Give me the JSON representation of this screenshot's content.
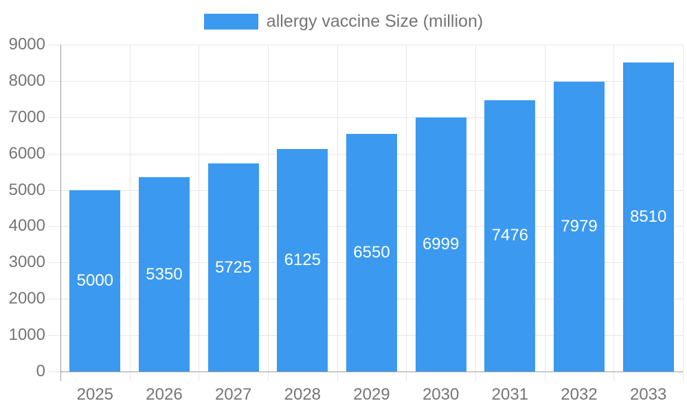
{
  "legend": {
    "label": "allergy vaccine Size (million)"
  },
  "colors": {
    "bar": "#3B99F0",
    "grid": "#E6E6E6",
    "axis": "#9E9E9E",
    "text": "#757575",
    "bar_label": "#FFFFFF",
    "background": "#FFFFFF"
  },
  "chart_data": {
    "type": "bar",
    "title": "",
    "categories": [
      "2025",
      "2026",
      "2027",
      "2028",
      "2029",
      "2030",
      "2031",
      "2032",
      "2033"
    ],
    "series": [
      {
        "name": "allergy vaccine Size (million)",
        "values": [
          5000,
          5350,
          5725,
          6125,
          6550,
          6999,
          7476,
          7979,
          8510
        ]
      }
    ],
    "xlabel": "",
    "ylabel": "",
    "ylim": [
      0,
      9000
    ],
    "ytick_step": 1000,
    "yticks": [
      0,
      1000,
      2000,
      3000,
      4000,
      5000,
      6000,
      7000,
      8000,
      9000
    ],
    "grid": true,
    "legend_position": "top-center",
    "value_labels": "inside-center"
  }
}
